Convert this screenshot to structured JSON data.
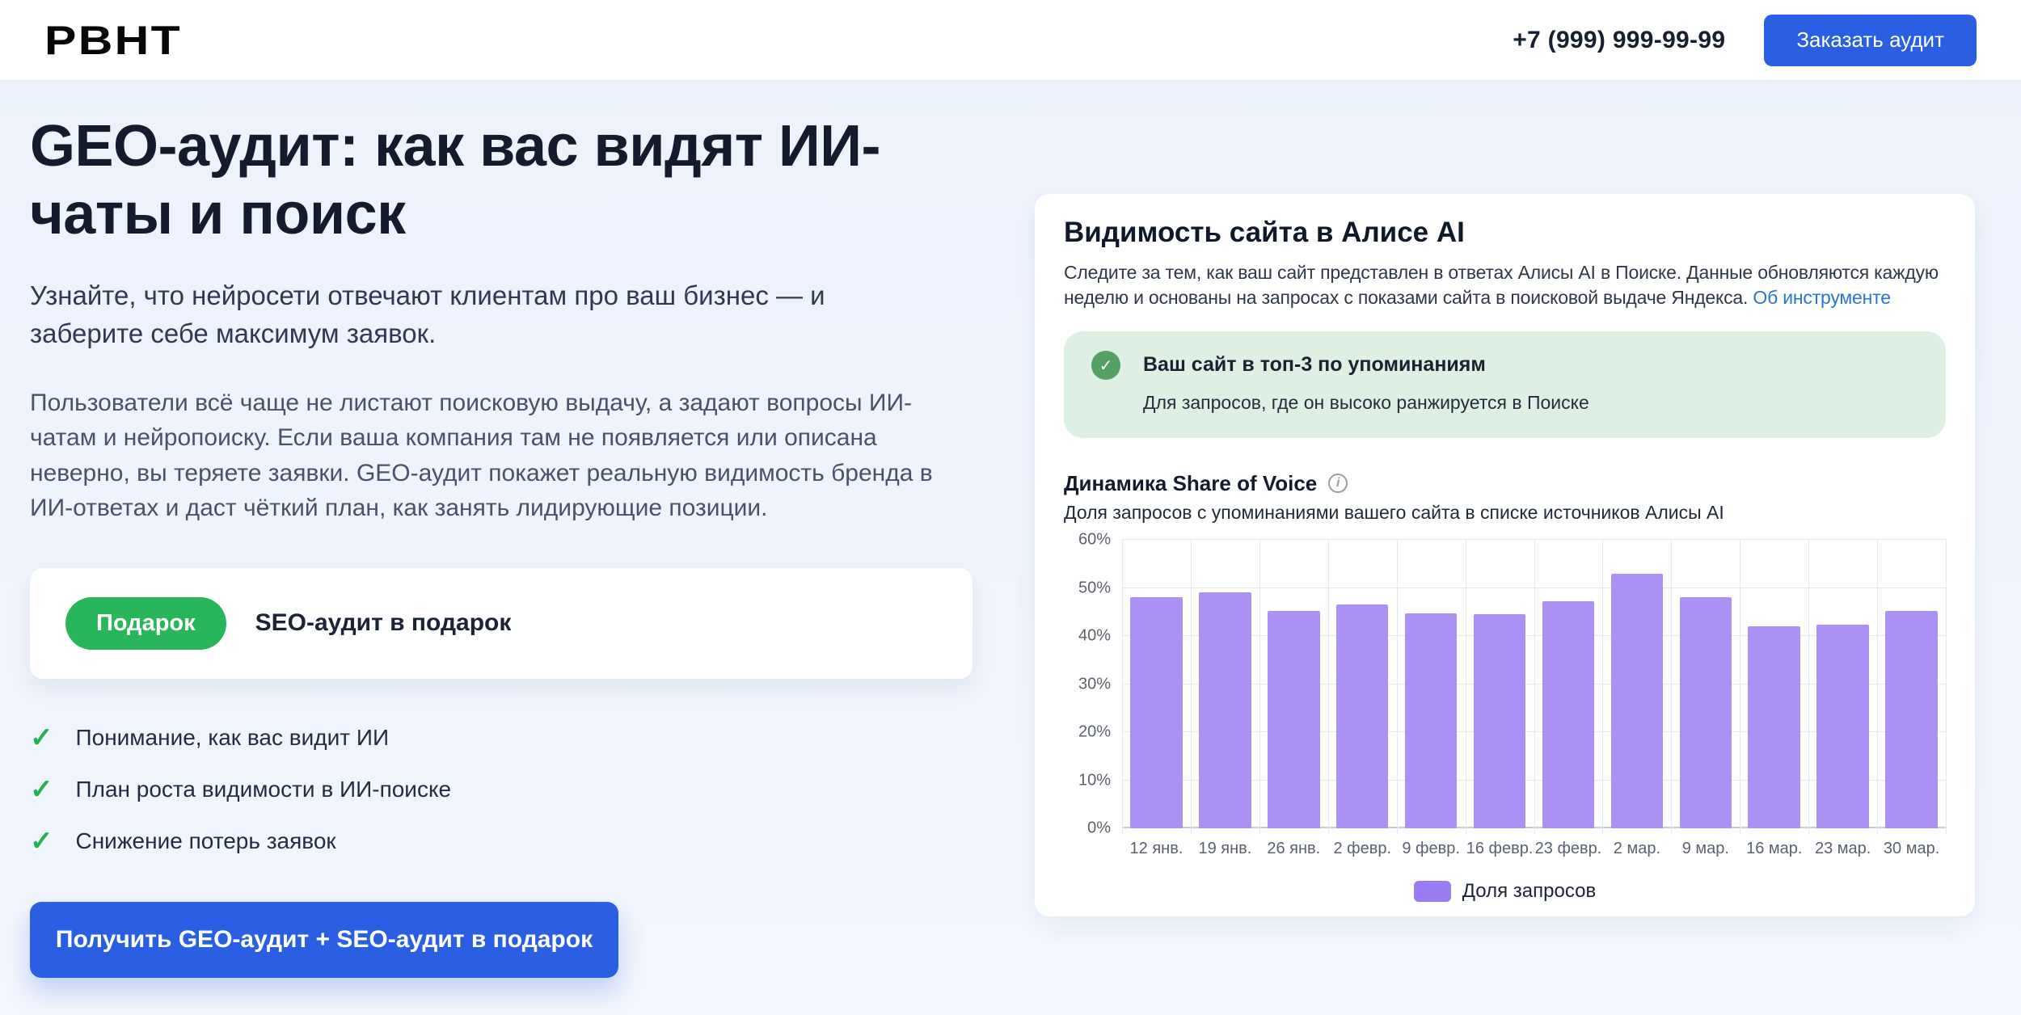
{
  "header": {
    "logo": "РВНТ",
    "phone": "+7 (999) 999-99-99",
    "cta_label": "Заказать аудит"
  },
  "hero": {
    "title": "GEO-аудит: как вас видят ИИ-чаты и поиск",
    "subtitle": "Узнайте, что нейросети отвечают клиентам про ваш бизнес — и заберите себе максимум заявок.",
    "paragraph": "Пользователи всё чаще не листают поисковую выдачу, а задают вопросы ИИ-чатам и нейропоиску. Если ваша компания там не появляется или описана неверно, вы теряете заявки. GEO-аудит покажет реальную видимость бренда в ИИ-ответах и даст чёткий план, как занять лидирующие позиции.",
    "gift_card": {
      "badge": "Подарок",
      "text": "SEO-аудит в подарок"
    },
    "benefits": [
      "Понимание, как вас видит ИИ",
      "План роста видимости в ИИ-поиске",
      "Снижение потерь заявок"
    ],
    "cta_label": "Получить GEO-аудит + SEO-аудит в подарок"
  },
  "widget": {
    "title": "Видимость сайта в Алисе AI",
    "description": "Следите за тем, как ваш сайт представлен в ответах Алисы AI в Поиске. Данные обновляются каждую неделю и основаны на запросах с показами сайта в поисковой выдаче Яндекса. ",
    "link_label": "Об инструменте",
    "alert": {
      "title": "Ваш сайт в топ-3 по упоминаниям",
      "subtitle": "Для запросов, где он высоко ранжируется в Поиске"
    },
    "chart_title": "Динамика Share of Voice",
    "chart_subtitle": "Доля запросов с упоминаниями вашего сайта в списке источников Алисы AI",
    "legend_label": "Доля запросов"
  },
  "chart_data": {
    "type": "bar",
    "title": "Динамика Share of Voice",
    "subtitle": "Доля запросов с упоминаниями вашего сайта в списке источников Алисы AI",
    "categories": [
      "12 янв.",
      "19 янв.",
      "26 янв.",
      "2 февр.",
      "9 февр.",
      "16 февр.",
      "23 февр.",
      "2 мар.",
      "9 мар.",
      "16 мар.",
      "23 мар.",
      "30 мар."
    ],
    "values": [
      48,
      49,
      45.2,
      46.6,
      44.7,
      44.5,
      47.2,
      53,
      48,
      42.1,
      42.4,
      45.2
    ],
    "xlabel": "",
    "ylabel": "",
    "ylim": [
      0,
      60
    ],
    "yticks": [
      0,
      10,
      20,
      30,
      40,
      50,
      60
    ],
    "ytick_format": "percent",
    "grid": true,
    "legend": [
      "Доля запросов"
    ],
    "legend_position": "bottom",
    "bar_color": "#ab91f3"
  },
  "colors": {
    "accent_blue": "#2a5fe3",
    "link_blue": "#2b74d9",
    "badge_green": "#29b65a",
    "check_green": "#22b14c",
    "alert_bg": "#def0e4",
    "alert_icon_green": "#55a163",
    "bar_purple": "#ab91f3",
    "legend_purple": "#9b7bf2",
    "page_bg": "#ecf1fb"
  }
}
